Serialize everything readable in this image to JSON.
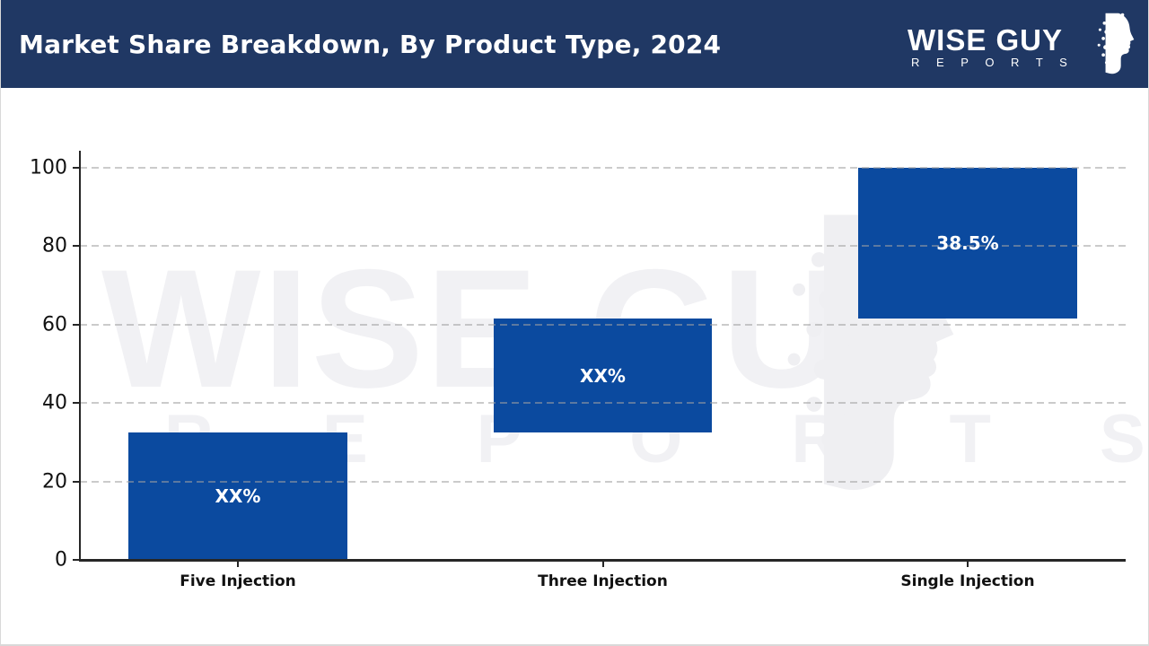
{
  "header": {
    "title": "Market Share Breakdown, By Product Type, 2024",
    "logo_name": "WISE GUY",
    "logo_sub": "R E P O R T S"
  },
  "watermark": {
    "line1": "WISE GUY",
    "line2": "R E P O R T S"
  },
  "colors": {
    "header_bg": "#203864",
    "bar": "#0b4a9f",
    "gridline": "#dedede",
    "axis": "#262626",
    "bar_label": "#ffffff",
    "watermark": "#f1f1f4"
  },
  "chart_data": {
    "type": "bar",
    "subtype": "waterfall",
    "title": "Market Share Breakdown, By Product Type, 2024",
    "categories": [
      "Five Injection",
      "Three Injection",
      "Single Injection"
    ],
    "segments": [
      {
        "category": "Five Injection",
        "start": 0,
        "end": 32.5,
        "label": "XX%"
      },
      {
        "category": "Three Injection",
        "start": 32.5,
        "end": 61.5,
        "label": "XX%"
      },
      {
        "category": "Single Injection",
        "start": 61.5,
        "end": 100,
        "label": "38.5%"
      }
    ],
    "xlabel": "",
    "ylabel": "",
    "ylim": [
      0,
      100
    ],
    "yticks": [
      0,
      20,
      40,
      60,
      80,
      100
    ],
    "grid": "dashed-horizontal",
    "gridlines_above_bars": true,
    "legend": "none",
    "bar_width_fraction": 0.6,
    "xlim": [
      -0.433,
      2.433
    ]
  }
}
